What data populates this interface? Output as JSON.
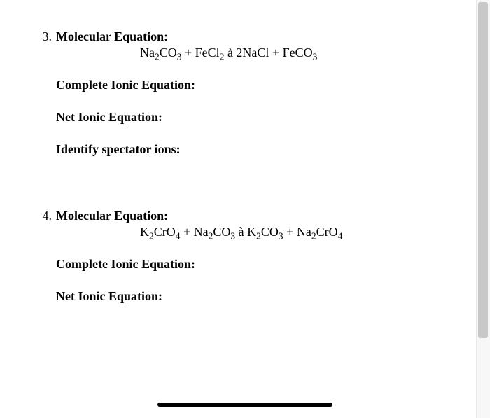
{
  "problems": [
    {
      "number": "3.",
      "molecular_label": "Molecular Equation:",
      "equation_html": "Na<sub>2</sub>CO<sub>3</sub> + FeCl<sub>2</sub> à 2NaCl + FeCO<sub>3</sub>",
      "complete_ionic_label": "Complete Ionic Equation:",
      "net_ionic_label": "Net Ionic Equation:",
      "spectator_label": "Identify spectator ions:"
    },
    {
      "number": "4.",
      "molecular_label": "Molecular Equation:",
      "equation_html": "K<sub>2</sub>CrO<sub>4</sub> + Na<sub>2</sub>CO<sub>3</sub> à K<sub>2</sub>CO<sub>3</sub> + Na<sub>2</sub>CrO<sub>4</sub>",
      "complete_ionic_label": "Complete Ionic Equation:",
      "net_ionic_label": "Net Ionic Equation:",
      "spectator_label": null
    }
  ],
  "style": {
    "font_family": "Times New Roman",
    "font_size_pt": 14,
    "text_color": "#000000",
    "background_color": "#ffffff",
    "scrollbar_track_color": "#f7f7f7",
    "scrollbar_thumb_color": "#c8c8c8",
    "bottom_bar_color": "#000000"
  }
}
